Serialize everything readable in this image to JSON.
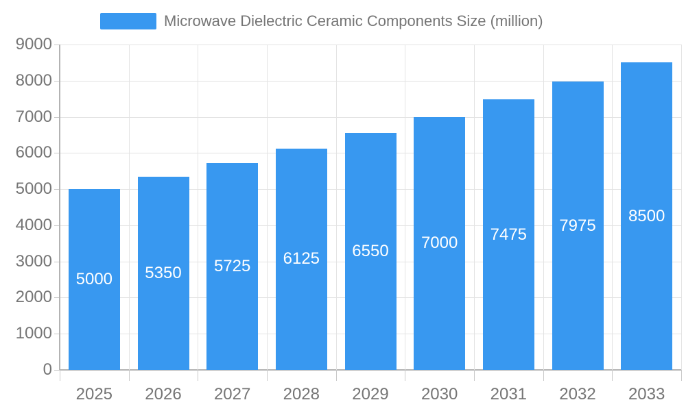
{
  "colors": {
    "bar": "#3898F0",
    "axis_text": "#757575",
    "value_label_text": "#FFFFFF",
    "gridline": "#E3E3E3",
    "axis_line": "#B3B3B3",
    "tick": "#C9C9C9",
    "background": "#FFFFFF"
  },
  "legend": {
    "position": "top",
    "label": "Microwave Dielectric Ceramic Components Size (million)"
  },
  "chart_data": {
    "type": "bar",
    "title": "Microwave Dielectric Ceramic Components Size (million)",
    "categories": [
      "2025",
      "2026",
      "2027",
      "2028",
      "2029",
      "2030",
      "2031",
      "2032",
      "2033"
    ],
    "values": [
      5000,
      5350,
      5725,
      6125,
      6550,
      7000,
      7475,
      7975,
      8500
    ],
    "yticks": [
      0,
      1000,
      2000,
      3000,
      4000,
      5000,
      6000,
      7000,
      8000,
      9000
    ],
    "ylim": [
      0,
      9000
    ],
    "xlabel": "",
    "ylabel": "",
    "grid": true,
    "legend_position": "top",
    "value_label_position": "inside-center"
  }
}
